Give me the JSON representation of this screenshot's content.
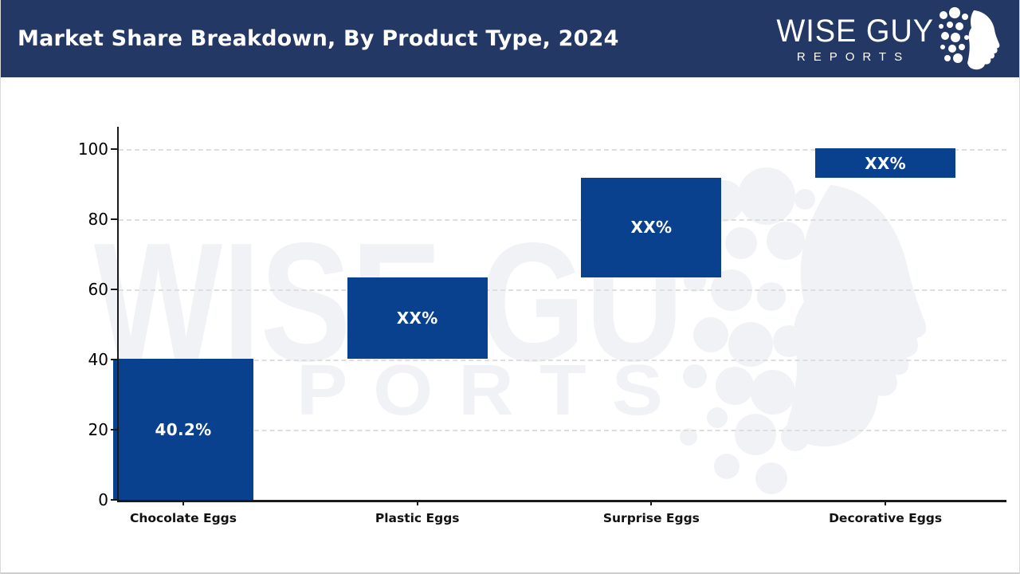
{
  "header": {
    "title": "Market Share Breakdown, By Product Type, 2024",
    "bg_color": "#233864",
    "logo": {
      "line1": "WISE GUY",
      "line2": "REPORTS"
    }
  },
  "watermark": {
    "line1": "WISE GU",
    "line2": "PORTS"
  },
  "chart_data": {
    "type": "bar",
    "subtype": "waterfall",
    "title": "Market Share Breakdown, By Product Type, 2024",
    "xlabel": "",
    "ylabel": "",
    "categories": [
      "Chocolate Eggs",
      "Plastic Eggs",
      "Surprise Eggs",
      "Decorative Eggs"
    ],
    "segments": [
      {
        "category": "Chocolate Eggs",
        "start": 0,
        "end": 40.2,
        "label": "40.2%"
      },
      {
        "category": "Plastic Eggs",
        "start": 40.2,
        "end": 63.5,
        "label": "XX%"
      },
      {
        "category": "Surprise Eggs",
        "start": 63.5,
        "end": 91.8,
        "label": "XX%"
      },
      {
        "category": "Decorative Eggs",
        "start": 91.8,
        "end": 100.2,
        "label": "XX%"
      }
    ],
    "yticks": [
      0,
      20,
      40,
      60,
      80,
      100
    ],
    "ylim": [
      0,
      105
    ],
    "bar_color": "#0a418f",
    "grid": "horizontal-dashed",
    "legend": "none"
  }
}
